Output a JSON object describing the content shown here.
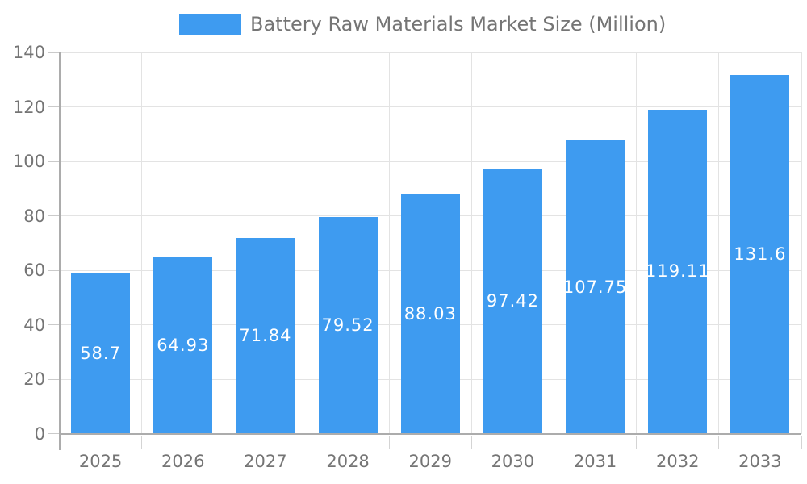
{
  "legend": {
    "label": "Battery Raw Materials Market Size (Million)"
  },
  "chart_data": {
    "type": "bar",
    "title": "Battery Raw Materials Market Size (Million)",
    "categories": [
      "2025",
      "2026",
      "2027",
      "2028",
      "2029",
      "2030",
      "2031",
      "2032",
      "2033"
    ],
    "values": [
      58.7,
      64.93,
      71.84,
      79.52,
      88.03,
      97.42,
      107.75,
      119.11,
      131.6
    ],
    "value_labels": [
      "58.7",
      "64.93",
      "71.84",
      "79.52",
      "88.03",
      "97.42",
      "107.75",
      "119.11",
      "131.6"
    ],
    "xlabel": "",
    "ylabel": "",
    "ylim": [
      0,
      140
    ],
    "yticks": [
      0,
      20,
      40,
      60,
      80,
      100,
      120,
      140
    ],
    "grid": "on",
    "legend_position": "top",
    "colors": {
      "bar": "#3E9BF0",
      "grid_line": "#E3E3E3",
      "axis_line": "#ACACAC",
      "y_tick_line": "#CACACA",
      "x_tick_line": "#D4D4D4",
      "axis_text": "#757575",
      "value_label_text": "#FFFFFF",
      "background": "#FFFFFF"
    }
  }
}
